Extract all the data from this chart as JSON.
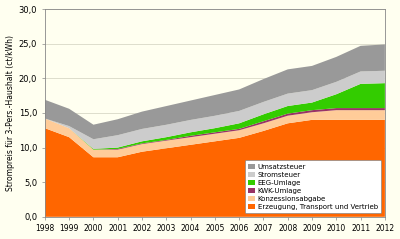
{
  "years": [
    1998,
    1999,
    2000,
    2001,
    2002,
    2003,
    2004,
    2005,
    2006,
    2007,
    2008,
    2009,
    2010,
    2011,
    2012
  ],
  "erzeugung": [
    12.8,
    11.5,
    8.6,
    8.6,
    9.4,
    9.9,
    10.4,
    10.9,
    11.4,
    12.4,
    13.5,
    14.0,
    14.0,
    14.0,
    14.0
  ],
  "konzessionsabgabe": [
    1.4,
    1.3,
    1.1,
    1.1,
    1.1,
    1.1,
    1.1,
    1.1,
    1.1,
    1.1,
    1.1,
    1.1,
    1.4,
    1.4,
    1.4
  ],
  "kwk_umlage": [
    0.0,
    0.0,
    0.0,
    0.1,
    0.1,
    0.1,
    0.2,
    0.2,
    0.2,
    0.3,
    0.3,
    0.3,
    0.3,
    0.3,
    0.3
  ],
  "eeg_umlage": [
    0.0,
    0.0,
    0.1,
    0.2,
    0.3,
    0.4,
    0.5,
    0.6,
    0.8,
    1.0,
    1.1,
    1.1,
    2.0,
    3.5,
    3.6
  ],
  "stromsteuer": [
    0.0,
    0.3,
    1.4,
    1.79,
    1.79,
    1.79,
    1.79,
    1.79,
    1.79,
    1.79,
    1.79,
    1.79,
    1.79,
    1.79,
    1.79
  ],
  "umsatzsteuer": [
    2.7,
    2.5,
    2.1,
    2.3,
    2.5,
    2.7,
    2.8,
    3.0,
    3.1,
    3.3,
    3.5,
    3.5,
    3.6,
    3.7,
    3.8
  ],
  "ylim": [
    0,
    30
  ],
  "yticks": [
    0.0,
    5.0,
    10.0,
    15.0,
    20.0,
    25.0,
    30.0
  ],
  "ylabel": "Strompreis für 3-Pers.-Haushalt (ct/kWh)",
  "colors": {
    "erzeugung": "#FF6600",
    "konzessionsabgabe": "#FFCC99",
    "kwk_umlage": "#993366",
    "eeg_umlage": "#33CC00",
    "stromsteuer": "#CCCCCC",
    "umsatzsteuer": "#999999"
  },
  "bg_color": "#FFFFF0",
  "grid_color": "#DDDDCC"
}
